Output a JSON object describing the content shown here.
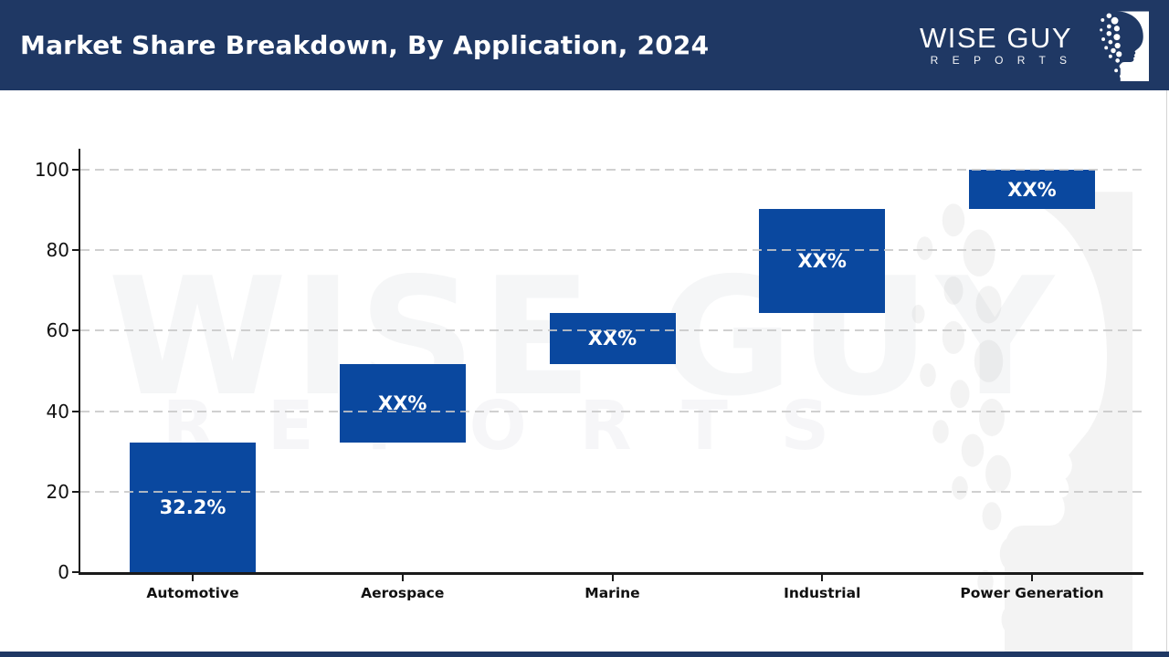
{
  "header": {
    "title": "Market Share Breakdown, By Application, 2024",
    "background_color": "#1f3864",
    "logo": {
      "line1": "WISE GUY",
      "line2": "R E P O R T S"
    }
  },
  "watermark": {
    "line1": "WISE GUY",
    "line2": "REPORTS"
  },
  "chart_data": {
    "type": "bar",
    "subtype": "waterfall",
    "title": "Market Share Breakdown, By Application, 2024",
    "categories": [
      "Automotive",
      "Aerospace",
      "Marine",
      "Industrial",
      "Power Generation"
    ],
    "segments": [
      {
        "category": "Automotive",
        "start": 0,
        "end": 32.2,
        "label": "32.2%"
      },
      {
        "category": "Aerospace",
        "start": 32.2,
        "end": 51.6,
        "label": "XX%"
      },
      {
        "category": "Marine",
        "start": 51.6,
        "end": 64.5,
        "label": "XX%"
      },
      {
        "category": "Industrial",
        "start": 64.5,
        "end": 90.2,
        "label": "XX%"
      },
      {
        "category": "Power Generation",
        "start": 90.2,
        "end": 100,
        "label": "XX%"
      }
    ],
    "values_increment": [
      32.2,
      19.4,
      12.9,
      25.7,
      9.8
    ],
    "xlabel": "",
    "ylabel": "",
    "yticks": [
      0,
      20,
      40,
      60,
      80,
      100
    ],
    "ylim": [
      0,
      105
    ],
    "grid": true,
    "grid_style": "dashed",
    "legend": "none",
    "bar_color": "#0a489f",
    "bar_label_color": "#ffffff",
    "axis_color": "#1a1a1a",
    "tick_label_color": "#111111"
  }
}
